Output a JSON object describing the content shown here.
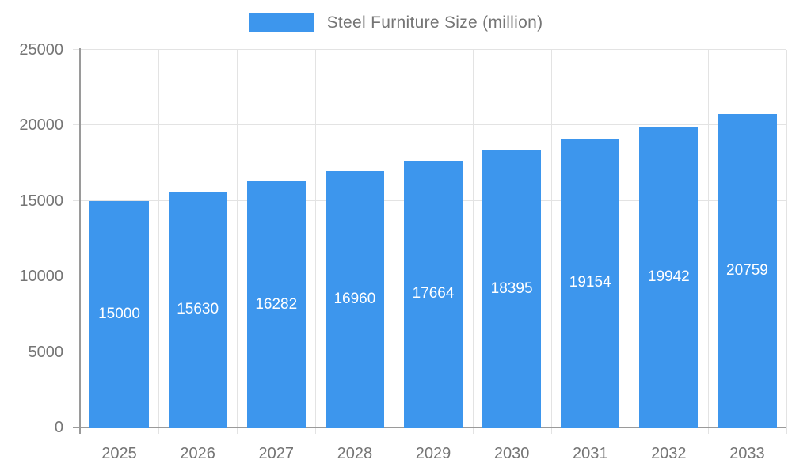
{
  "legend": {
    "label": "Steel Furniture Size (million)"
  },
  "chart_data": {
    "type": "bar",
    "title": "Steel Furniture Size (million)",
    "categories": [
      "2025",
      "2026",
      "2027",
      "2028",
      "2029",
      "2030",
      "2031",
      "2032",
      "2033"
    ],
    "series": [
      {
        "name": "Steel Furniture Size (million)",
        "values": [
          15000,
          15630,
          16282,
          16960,
          17664,
          18395,
          19154,
          19942,
          20759
        ]
      }
    ],
    "xlabel": "",
    "ylabel": "",
    "ylim": [
      0,
      25000
    ],
    "yticks": [
      0,
      5000,
      10000,
      15000,
      20000,
      25000
    ],
    "grid": true,
    "legend_position": "top",
    "value_labels": "inside-center"
  },
  "colors": {
    "bar": "#3d96ed",
    "gridline": "#e3e3e3",
    "axis_line": "#9a9a9a",
    "axis_text": "#757575",
    "value_label_text": "#ffffff",
    "background": "#ffffff"
  }
}
